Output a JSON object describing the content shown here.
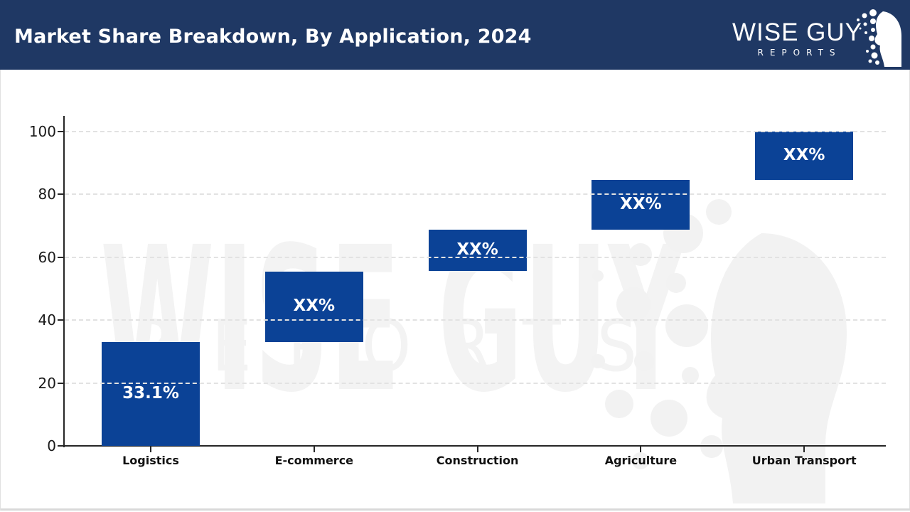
{
  "header": {
    "title": "Market Share Breakdown, By Application, 2024",
    "bg_color": "#1f3864"
  },
  "logo": {
    "line1": "WISE GUY",
    "line2": "REPORTS"
  },
  "watermark": {
    "line1": "WISE GUY",
    "line2": "REPORTS"
  },
  "chart_data": {
    "type": "bar",
    "subtype": "waterfall",
    "title": "Market Share Breakdown, By Application, 2024",
    "xlabel": "",
    "ylabel": "",
    "ylim": [
      0,
      100
    ],
    "yticks": [
      0,
      20,
      40,
      60,
      80,
      100
    ],
    "grid": true,
    "grid_style": "dashed",
    "legend": "none",
    "bar_color": "#0b4296",
    "label_color": "#ffffff",
    "categories": [
      "Logistics",
      "E-commerce",
      "Construction",
      "Agriculture",
      "Urban Transport"
    ],
    "segments": [
      {
        "category": "Logistics",
        "start": 0,
        "end": 33.1,
        "label": "33.1%"
      },
      {
        "category": "E-commerce",
        "start": 33.1,
        "end": 55.4,
        "label": "XX%"
      },
      {
        "category": "Construction",
        "start": 55.6,
        "end": 68.8,
        "label": "XX%"
      },
      {
        "category": "Agriculture",
        "start": 68.8,
        "end": 84.6,
        "label": "XX%"
      },
      {
        "category": "Urban Transport",
        "start": 84.6,
        "end": 100,
        "label": "XX%"
      }
    ]
  }
}
